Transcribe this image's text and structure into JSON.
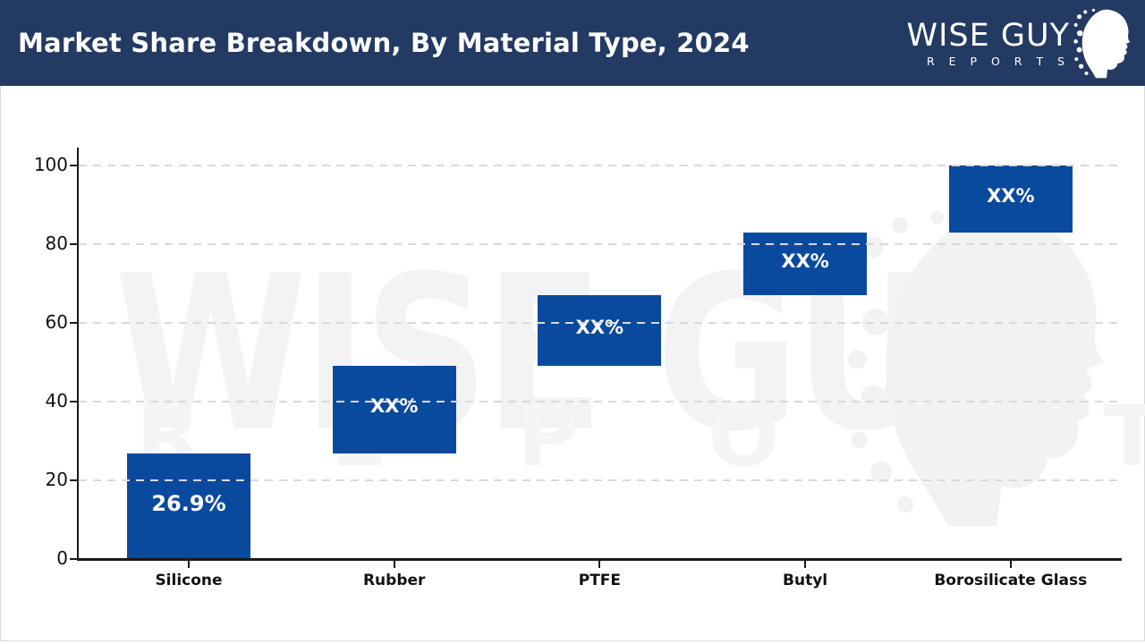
{
  "header": {
    "title": "Market Share Breakdown, By Material Type, 2024",
    "logo": {
      "name": "WISE GUY",
      "sub": "R E P O R T S"
    }
  },
  "watermark": {
    "line1": "WISE GUY",
    "line2": "R E P O R T S"
  },
  "chart_data": {
    "type": "bar",
    "variant": "waterfall-market-share",
    "title": "Market Share Breakdown, By Material Type, 2024",
    "categories": [
      "Silicone",
      "Rubber",
      "PTFE",
      "Butyl",
      "Borosilicate Glass"
    ],
    "segments": [
      {
        "category": "Silicone",
        "start": 0,
        "end": 26.9,
        "label": "26.9%"
      },
      {
        "category": "Rubber",
        "start": 26.9,
        "end": 49.2,
        "label": "XX%"
      },
      {
        "category": "PTFE",
        "start": 49.2,
        "end": 67.1,
        "label": "XX%"
      },
      {
        "category": "Butyl",
        "start": 67.1,
        "end": 83.0,
        "label": "XX%"
      },
      {
        "category": "Borosilicate Glass",
        "start": 83.0,
        "end": 100,
        "label": "XX%"
      }
    ],
    "yticks": [
      0,
      20,
      40,
      60,
      80,
      100
    ],
    "ylim": [
      0,
      104.5
    ],
    "xlabel": "",
    "ylabel": "",
    "legend": null,
    "grid": "horizontal-dashed",
    "colors": {
      "bar": "#0a4a9e",
      "grid": "#d9d9d9",
      "axis": "#1a1a1a",
      "header_bg": "#233a62",
      "bar_label": "#ffffff",
      "watermark": "#f2f2f2"
    }
  }
}
